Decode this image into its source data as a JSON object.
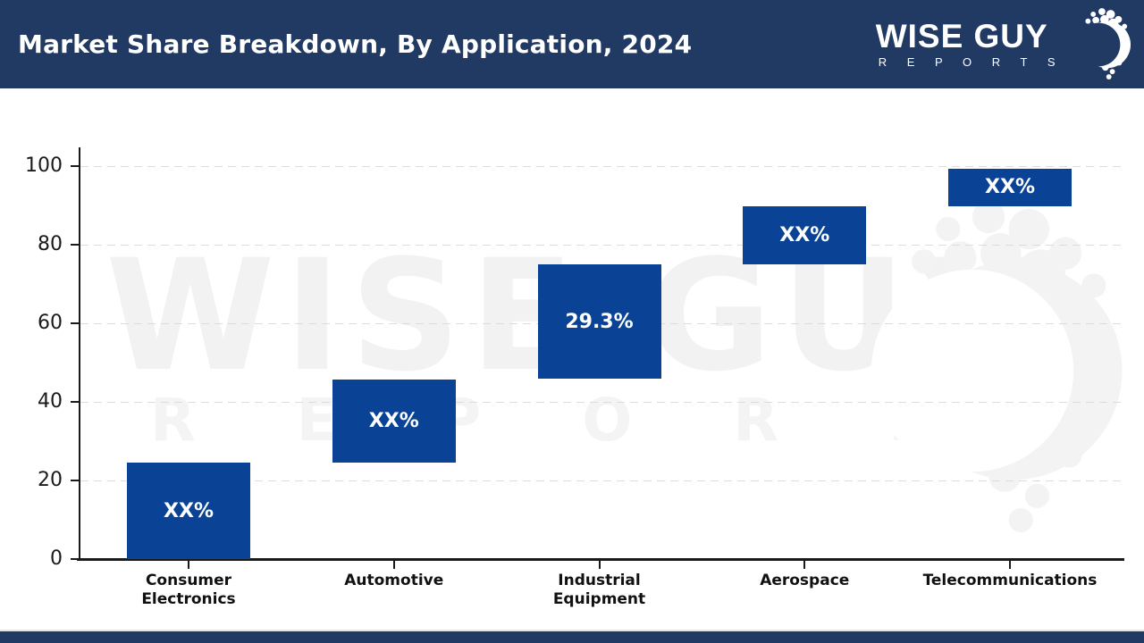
{
  "header": {
    "title": "Market Share Breakdown, By Application, 2024",
    "logo": {
      "name": "WISE GUY",
      "subtitle": "R E P O R T S"
    }
  },
  "watermark": {
    "line1": "WISE GUY",
    "line2": "R E P O R T S"
  },
  "chart_data": {
    "type": "bar",
    "subtype": "floating-waterfall",
    "title": "Market Share Breakdown, By Application, 2024",
    "categories": [
      "Consumer Electronics",
      "Automotive",
      "Industrial Equipment",
      "Aerospace",
      "Telecommunications"
    ],
    "bars": [
      {
        "category": "Consumer Electronics",
        "lines": [
          "Consumer",
          "Electronics"
        ],
        "label": "XX%",
        "start": 0,
        "end": 24.5
      },
      {
        "category": "Automotive",
        "lines": [
          "Automotive"
        ],
        "label": "XX%",
        "start": 24.5,
        "end": 45.7
      },
      {
        "category": "Industrial Equipment",
        "lines": [
          "Industrial",
          "Equipment"
        ],
        "label": "29.3%",
        "start": 45.8,
        "end": 75.1
      },
      {
        "category": "Aerospace",
        "lines": [
          "Aerospace"
        ],
        "label": "XX%",
        "start": 75.0,
        "end": 89.8
      },
      {
        "category": "Telecommunications",
        "lines": [
          "Telecommunications"
        ],
        "label": "XX%",
        "start": 89.8,
        "end": 99.4
      }
    ],
    "y_ticks": [
      0,
      20,
      40,
      60,
      80,
      100
    ],
    "ylim": [
      0,
      105
    ],
    "xlabel": "",
    "ylabel": "",
    "grid": "dashed-horizontal",
    "legend": false,
    "bar_color": "#0A4396",
    "label_color": "#FFFFFF"
  },
  "colors": {
    "header_bg": "#213A64",
    "footer_bg": "#213A64",
    "bar": "#0A4396",
    "grid": "#DCDCDC",
    "axis": "#1A1A1A",
    "watermark": "#F2F2F2"
  }
}
